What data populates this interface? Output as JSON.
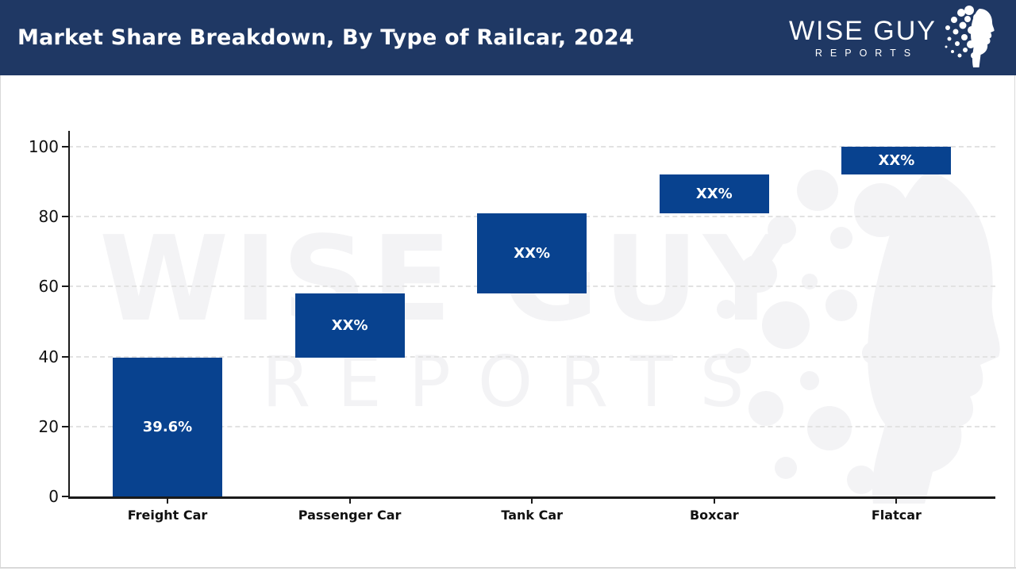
{
  "header": {
    "title": "Market Share Breakdown, By Type of Railcar, 2024",
    "logo": {
      "line1": "WISE GUY",
      "line2": "REPORTS"
    }
  },
  "watermark": {
    "line1": "WISE GUY",
    "line2": "REPORTS"
  },
  "chart_data": {
    "type": "bar",
    "subtype": "waterfall",
    "title": "Market Share Breakdown, By Type of Railcar, 2024",
    "categories": [
      "Freight Car",
      "Passenger Car",
      "Tank Car",
      "Boxcar",
      "Flatcar"
    ],
    "segments": [
      {
        "category": "Freight Car",
        "start": 0,
        "end": 39.6,
        "label": "39.6%"
      },
      {
        "category": "Passenger Car",
        "start": 39.6,
        "end": 58,
        "label": "XX%"
      },
      {
        "category": "Tank Car",
        "start": 58,
        "end": 81,
        "label": "XX%"
      },
      {
        "category": "Boxcar",
        "start": 81,
        "end": 92,
        "label": "XX%"
      },
      {
        "category": "Flatcar",
        "start": 92,
        "end": 100,
        "label": "XX%"
      }
    ],
    "xlabel": "",
    "ylabel": "",
    "ylim": [
      0,
      100
    ],
    "yticks": [
      0,
      20,
      40,
      60,
      80,
      100
    ],
    "grid": "horizontal-dashed",
    "legend": "none"
  },
  "colors": {
    "header_bg": "#1f3864",
    "bar": "#08428f",
    "bar_label": "#ffffff",
    "grid": "#e2e2e2",
    "axis": "#1a1a1a",
    "watermark": "#f3f3f5"
  }
}
